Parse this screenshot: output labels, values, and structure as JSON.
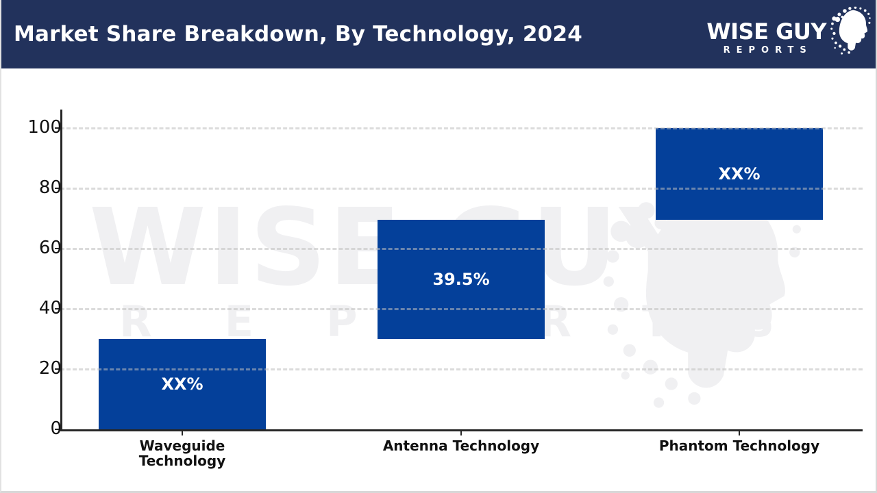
{
  "header": {
    "title": "Market Share Breakdown, By Technology, 2024",
    "bg": "#22325c",
    "brand": {
      "line1": "WISE GUY",
      "line2": "REPORTS"
    }
  },
  "watermark": {
    "line1": "WISE GUY",
    "line2": "REPORTS"
  },
  "chart_data": {
    "type": "bar",
    "subtype": "floating-segment (waterfall-style market share)",
    "title": "Market Share Breakdown, By Technology, 2024",
    "categories": [
      "Waveguide\nTechnology",
      "Antenna Technology",
      "Phantom Technology"
    ],
    "bars": [
      {
        "category": "Waveguide Technology",
        "start": 0,
        "end": 30,
        "label": "XX%"
      },
      {
        "category": "Antenna Technology",
        "start": 30,
        "end": 69.5,
        "label": "39.5%"
      },
      {
        "category": "Phantom Technology",
        "start": 69.5,
        "end": 100,
        "label": "XX%"
      }
    ],
    "yticks": [
      0,
      20,
      40,
      60,
      80,
      100
    ],
    "ylim": [
      0,
      105
    ],
    "xlabel": "",
    "ylabel": "",
    "grid": "horizontal dashed",
    "legend": "none",
    "bar_color": "#04409a",
    "bar_label_color": "#ffffff"
  }
}
